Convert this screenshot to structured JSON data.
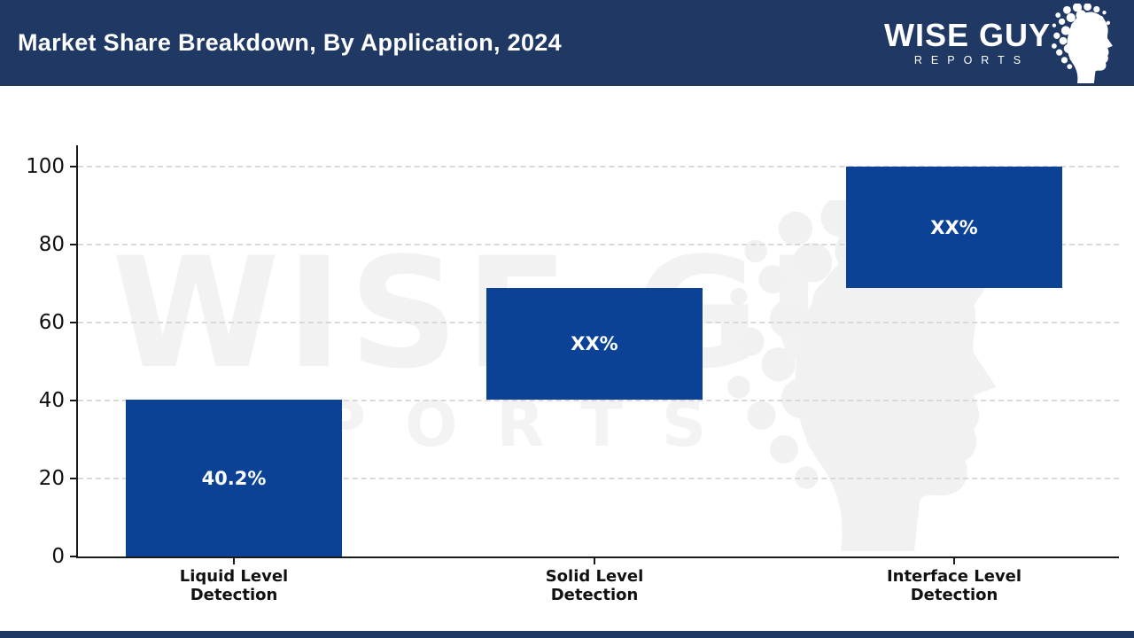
{
  "header": {
    "title": "Market Share Breakdown, By Application, 2024",
    "bg_color": "#1f3864",
    "logo": {
      "wordmark": "WISE GUY",
      "subtext": "REPORTS"
    }
  },
  "watermark": {
    "line1": "WISE GUY",
    "line2": "REPORTS"
  },
  "chart_data": {
    "type": "bar",
    "subtype": "floating-segment-waterfall",
    "title": "Market Share Breakdown, By Application, 2024",
    "categories": [
      "Liquid Level\nDetection",
      "Solid Level\nDetection",
      "Interface Level\nDetection"
    ],
    "segments": [
      {
        "category": "Liquid Level\nDetection",
        "start": 0,
        "end": 40.2,
        "value_label": "40.2%"
      },
      {
        "category": "Solid Level\nDetection",
        "start": 40.2,
        "end": 68.8,
        "value_label": "XX%"
      },
      {
        "category": "Interface Level\nDetection",
        "start": 68.8,
        "end": 100,
        "value_label": "XX%"
      }
    ],
    "y_ticks": [
      0,
      20,
      40,
      60,
      80,
      100
    ],
    "ylim": [
      0,
      100
    ],
    "xlabel": "",
    "ylabel": "",
    "legend": "none",
    "grid": "horizontal-dashed",
    "bar_color": "#0c4296",
    "value_label_color": "#ffffff",
    "gridline_color": "#d9d9d9",
    "axis_color": "#1a1a1a"
  }
}
